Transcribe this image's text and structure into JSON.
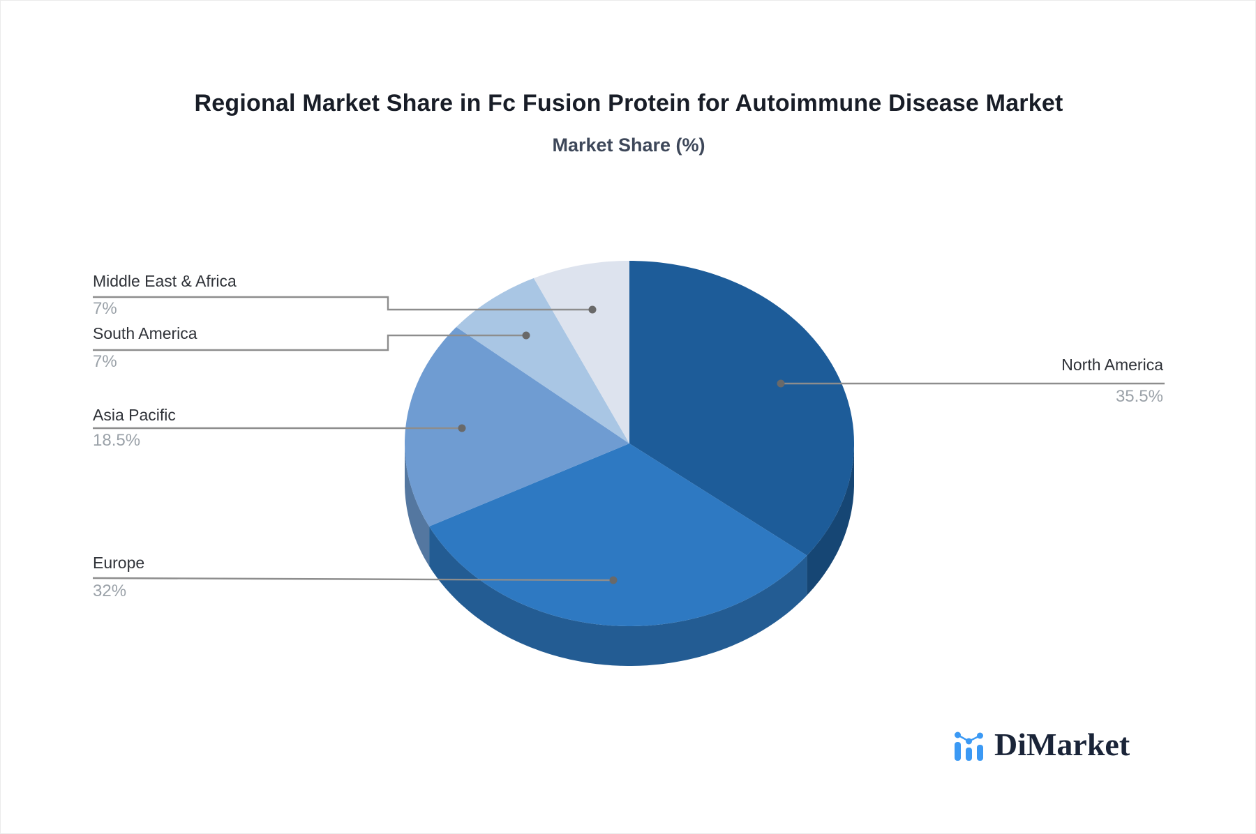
{
  "header": {
    "title": "Regional Market Share in Fc Fusion Protein for Autoimmune Disease Market",
    "subtitle": "Market Share (%)"
  },
  "chart_data": {
    "type": "pie",
    "style": "3d-depth",
    "title": "Regional Market Share in Fc Fusion Protein for Autoimmune Disease Market",
    "subtitle": "Market Share (%)",
    "unit": "%",
    "start_angle": "12-oclock",
    "direction": "clockwise",
    "categories": [
      "North America",
      "Europe",
      "Asia Pacific",
      "South America",
      "Middle East & Africa"
    ],
    "values": [
      35.5,
      32,
      18.5,
      7,
      7
    ],
    "value_labels": [
      "35.5%",
      "32%",
      "18.5%",
      "7%",
      "7%"
    ],
    "colors": [
      "#1d5c99",
      "#2e79c2",
      "#6f9cd2",
      "#a9c6e4",
      "#dde3ee"
    ],
    "leader_line_color": "#8d8d8d",
    "leader_dot_color": "#696969",
    "label_color": "#2f3238",
    "value_color": "#9aa1a8",
    "legend": "callout labels with leader lines"
  },
  "branding": {
    "name": "DiMarket",
    "icon": "bar-chart-with-trend-dots",
    "icon_color": "#3b99f4",
    "text_color": "#1a2438"
  }
}
